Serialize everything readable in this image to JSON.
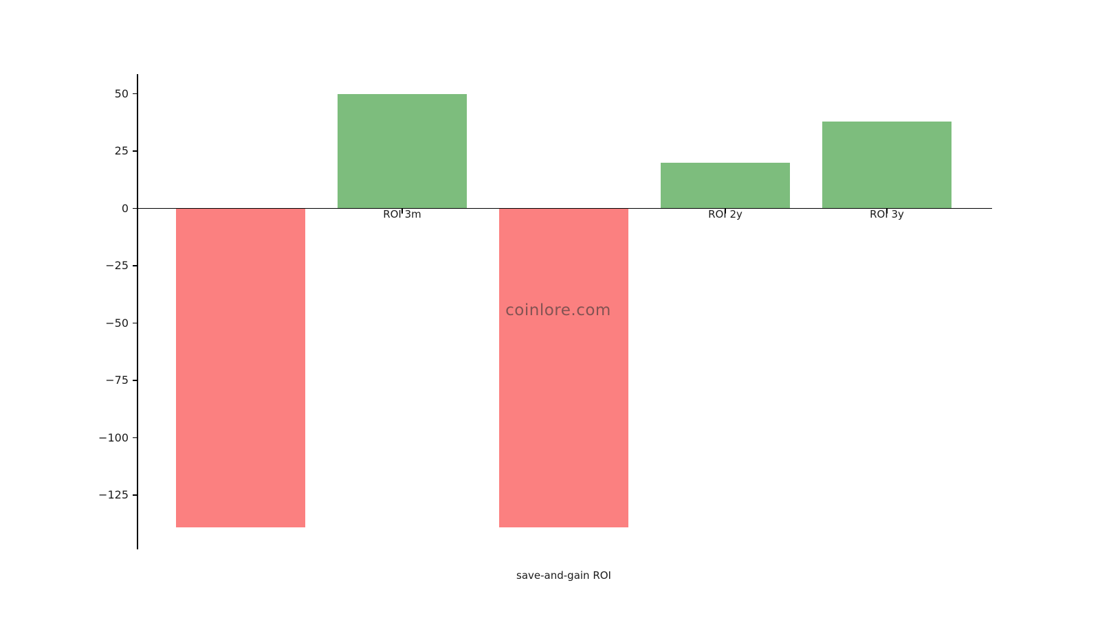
{
  "figure": {
    "watermark": "coinlore.com",
    "xlabel": "save-and-gain ROI"
  },
  "chart_data": {
    "type": "bar",
    "title": "",
    "xlabel": "save-and-gain ROI",
    "ylabel": "",
    "categories": [
      "",
      "ROI 3m",
      "",
      "ROI 2y",
      "ROI 3y"
    ],
    "category_label_visible": [
      false,
      true,
      false,
      true,
      true
    ],
    "values": [
      -139,
      50,
      -139,
      20,
      38
    ],
    "bar_colors": [
      "#fb8080",
      "#7dbd7d",
      "#fb8080",
      "#7dbd7d",
      "#7dbd7d"
    ],
    "colors": {
      "positive": "#7dbd7d",
      "negative": "#fb8080",
      "axis": "#000000",
      "watermark": "#373737"
    },
    "y_ticks": [
      50,
      25,
      0,
      -25,
      -50,
      -75,
      -100,
      -125
    ],
    "y_tick_labels": [
      "50",
      "25",
      "0",
      "−25",
      "−50",
      "−75",
      "−100",
      "−125"
    ],
    "ylim": [
      -149,
      59
    ],
    "grid": false,
    "legend": null,
    "watermark": "coinlore.com"
  }
}
